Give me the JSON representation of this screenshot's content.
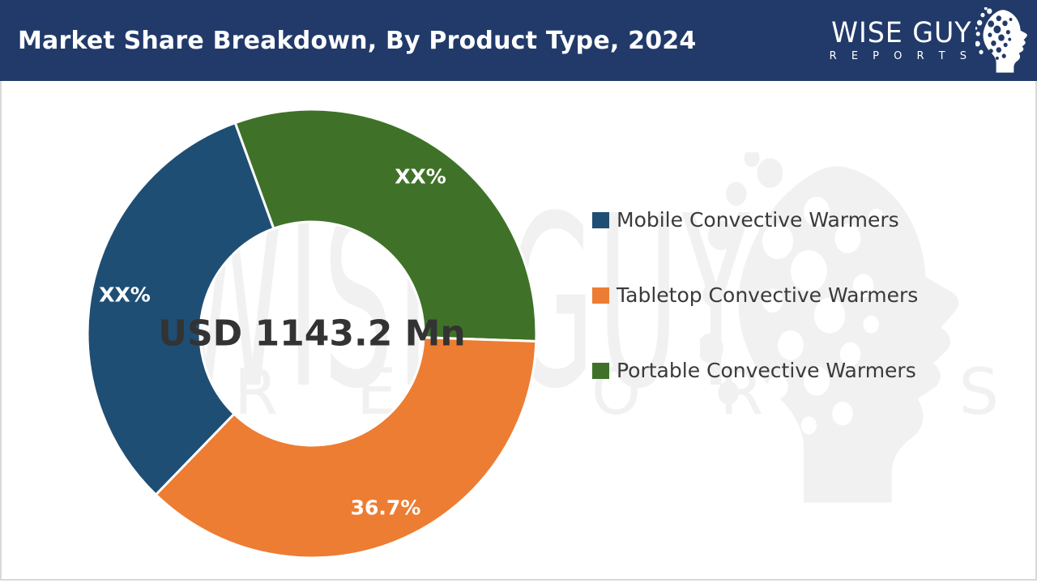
{
  "header": {
    "title": "Market Share Breakdown, By Product Type, 2024",
    "logo": {
      "brand": "WISE GUY",
      "brand_sub": "R E P O R T S"
    }
  },
  "watermark": {
    "brand": "WISE GUY",
    "brand_sub": "R E P O R T S"
  },
  "chart_data": {
    "type": "pie",
    "donut": true,
    "title": "Market Share Breakdown, By Product Type, 2024",
    "center_label": "USD 1143.2 Mn",
    "legend_position": "right",
    "start_angle_deg": -20,
    "draw_order": [
      2,
      1,
      0
    ],
    "outer_radius_px": 277,
    "inner_radius_px": 138,
    "series": [
      {
        "id": "mobile",
        "name": "Mobile Convective Warmers",
        "label": "XX%",
        "value_pct": 32.2,
        "color": "#1F4E74"
      },
      {
        "id": "tabletop",
        "name": "Tabletop Convective Warmers",
        "label": "36.7%",
        "value_pct": 36.7,
        "color": "#EC7D33"
      },
      {
        "id": "portable",
        "name": "Portable Convective Warmers",
        "label": "XX%",
        "value_pct": 31.1,
        "color": "#3F7228"
      }
    ]
  }
}
